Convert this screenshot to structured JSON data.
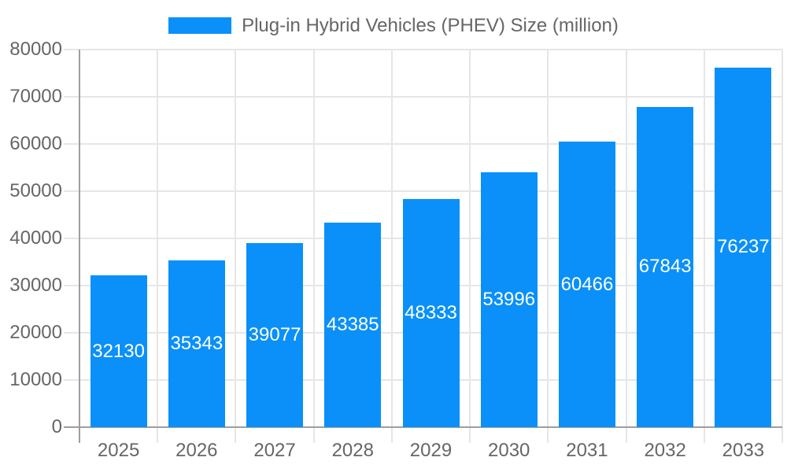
{
  "legend": {
    "label": "Plug-in Hybrid Vehicles (PHEV) Size (million)"
  },
  "chart_data": {
    "type": "bar",
    "title": "Plug-in Hybrid Vehicles (PHEV) Size (million)",
    "series_name": "Plug-in Hybrid Vehicles (PHEV) Size (million)",
    "categories": [
      "2025",
      "2026",
      "2027",
      "2028",
      "2029",
      "2030",
      "2031",
      "2032",
      "2033"
    ],
    "values": [
      32130,
      35343,
      39077,
      43385,
      48333,
      53996,
      60466,
      67843,
      76237
    ],
    "value_labels": [
      "32130",
      "35343",
      "39077",
      "43385",
      "48333",
      "53996",
      "60466",
      "67843",
      "76237"
    ],
    "xlabel": "",
    "ylabel": "",
    "ylim": [
      0,
      80000
    ],
    "y_tick_step": 10000,
    "y_tick_labels": [
      "0",
      "10000",
      "20000",
      "30000",
      "40000",
      "50000",
      "60000",
      "70000",
      "80000"
    ],
    "grid": true,
    "legend_position": "top",
    "colors": {
      "bar": "#0A90F8",
      "value_label_text": "#FFFFFF",
      "axis_text": "#666666",
      "legend_text": "#666666",
      "gridline": "#E6E6E6",
      "axis_line": "#9E9E9E",
      "background": "#FFFFFF"
    }
  }
}
